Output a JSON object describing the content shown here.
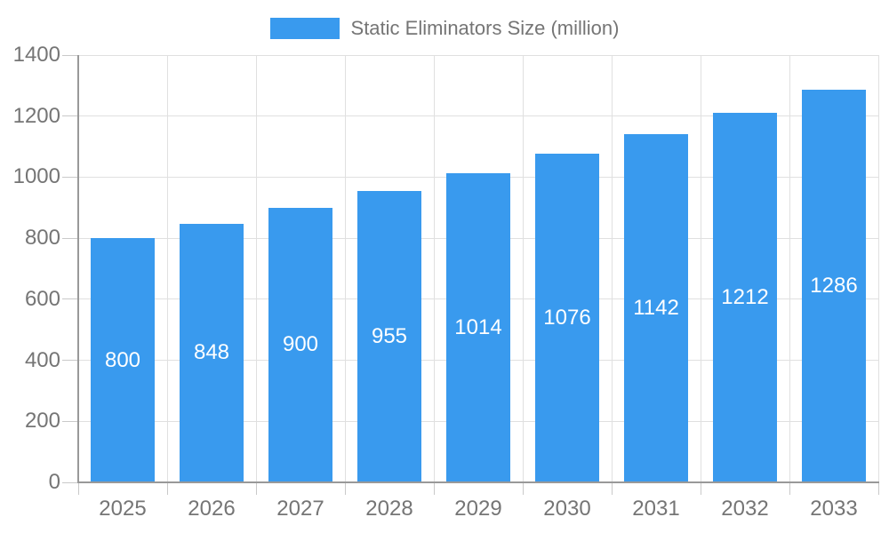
{
  "chart_data": {
    "type": "bar",
    "title": "",
    "xlabel": "",
    "ylabel": "",
    "series_name": "Static Eliminators Size (million)",
    "categories": [
      "2025",
      "2026",
      "2027",
      "2028",
      "2029",
      "2030",
      "2031",
      "2032",
      "2033"
    ],
    "values": [
      800,
      848,
      900,
      955,
      1014,
      1076,
      1142,
      1212,
      1286
    ],
    "ylim": [
      0,
      1400
    ],
    "yticks": [
      0,
      200,
      400,
      600,
      800,
      1000,
      1200,
      1400
    ],
    "grid": true,
    "legend_position": "top",
    "value_labels_inside_bars": true,
    "colors": {
      "bar": "#399AEE",
      "grid": "#E0E0E0",
      "axis": "#999999",
      "tick": "#C9C9C9",
      "label": "#757575",
      "value_label": "#FFFFFF",
      "background": "#FFFFFF"
    }
  }
}
